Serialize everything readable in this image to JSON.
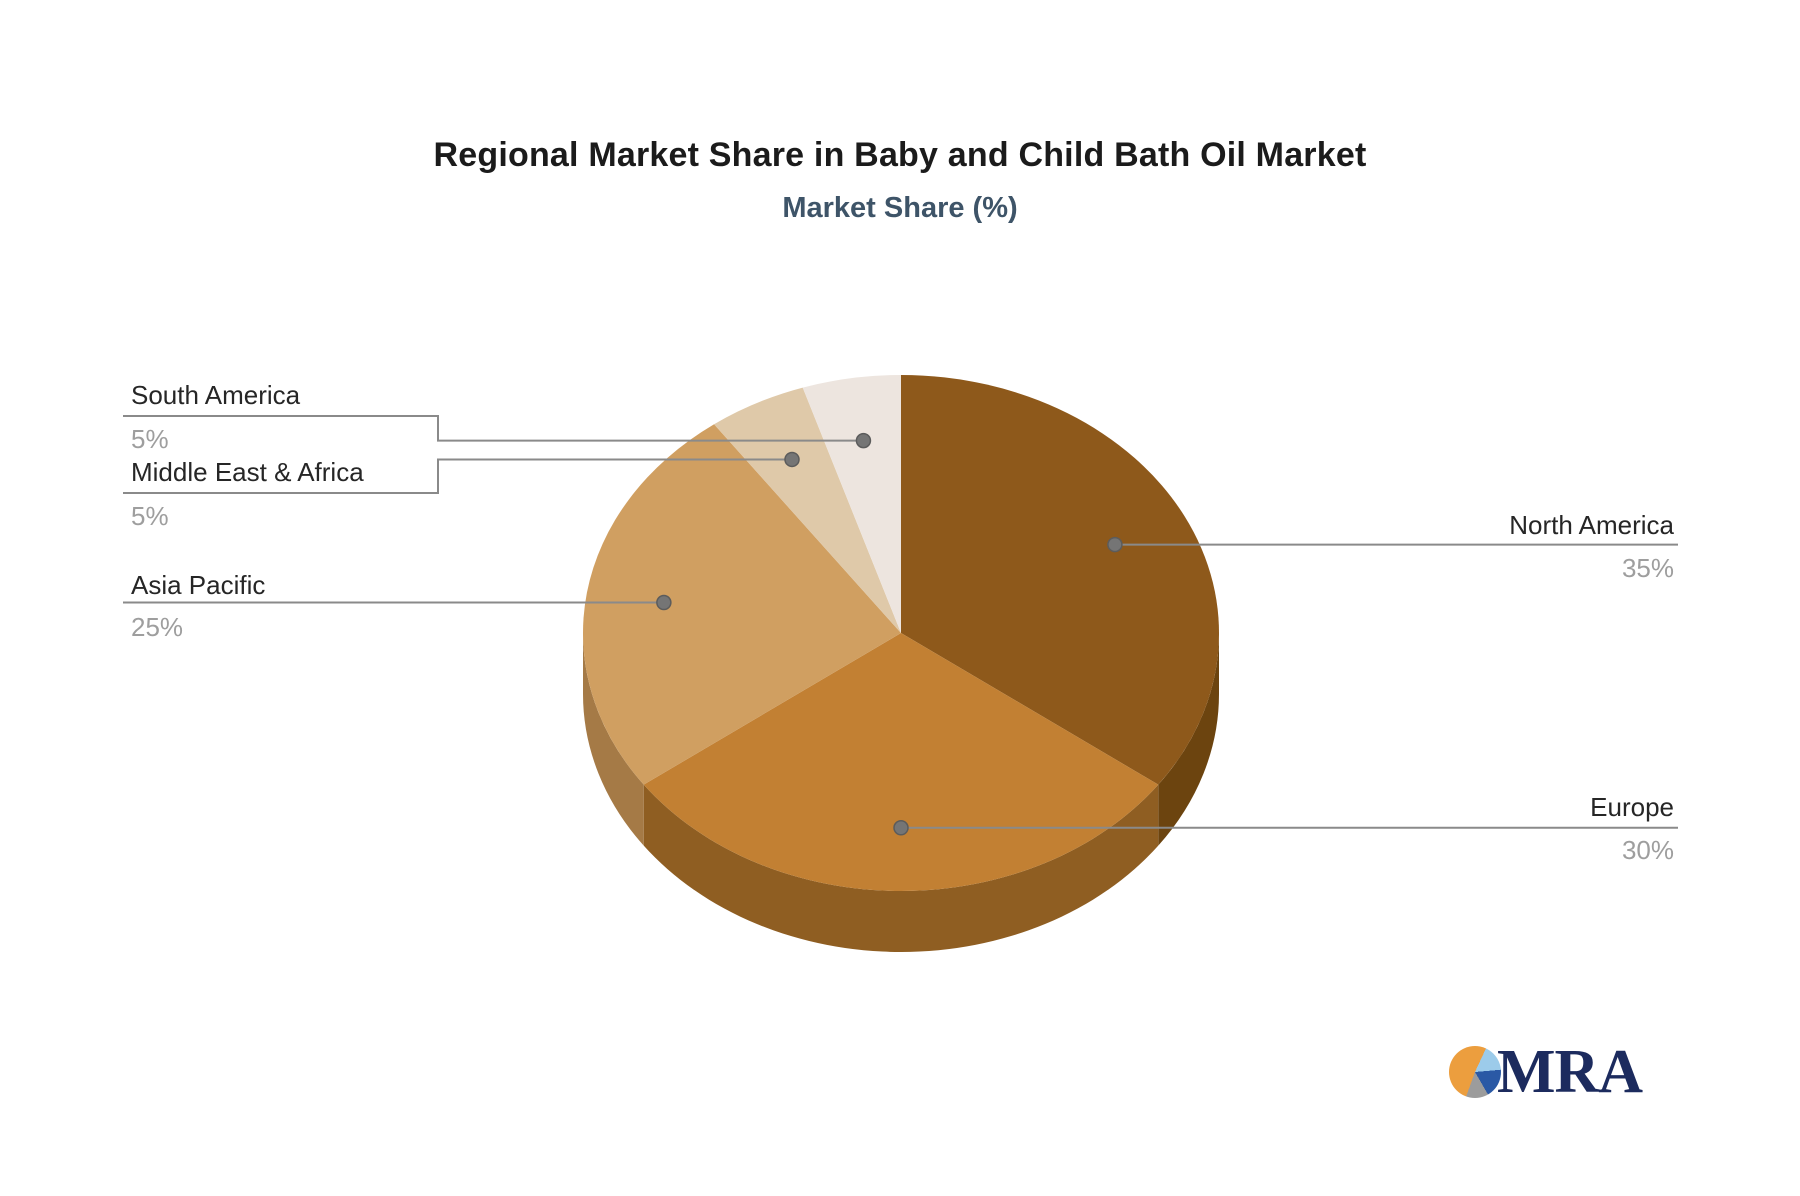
{
  "title": "Regional Market Share in Baby and Child Bath Oil Market",
  "subtitle": "Market Share (%)",
  "chart_data": {
    "type": "pie",
    "title": "Regional Market Share in Baby and Child Bath Oil Market",
    "subtitle": "Market Share (%)",
    "unit": "%",
    "effect": "3d",
    "start_angle_deg": 0,
    "direction": "clockwise",
    "labels": [
      "North America",
      "Europe",
      "Asia Pacific",
      "Middle East & Africa",
      "South America"
    ],
    "values": [
      35,
      30,
      25,
      5,
      5
    ],
    "colors": [
      "#8e591b",
      "#c28033",
      "#d09f61",
      "#dfc9a9",
      "#ede5df"
    ],
    "depth_colors": [
      "#6c440f",
      "#8f5e22",
      "#a57a46",
      "#b29479",
      "#beb5af"
    ],
    "legend_position": "none",
    "grid": false
  },
  "callouts": {
    "north_america": {
      "label": "North America",
      "value_label": "35%"
    },
    "europe": {
      "label": "Europe",
      "value_label": "30%"
    },
    "asia_pacific": {
      "label": "Asia Pacific",
      "value_label": "25%"
    },
    "middle_east_africa": {
      "label": "Middle East & Africa",
      "value_label": "5%"
    },
    "south_america": {
      "label": "South America",
      "value_label": "5%"
    }
  },
  "style": {
    "leader_line_color": "#8a8a8a",
    "dot_fill": "#757575",
    "dot_stroke": "#5c5c5c",
    "label_color": "#262626",
    "value_color": "#9e9e9e"
  },
  "logo": {
    "text": "MRA",
    "text_color": "#1c2b5e",
    "icon_colors": {
      "orange": "#ec9e3e",
      "light_blue": "#9ccbea",
      "dark_blue": "#2a59a5",
      "gray": "#9c9c9c"
    }
  }
}
